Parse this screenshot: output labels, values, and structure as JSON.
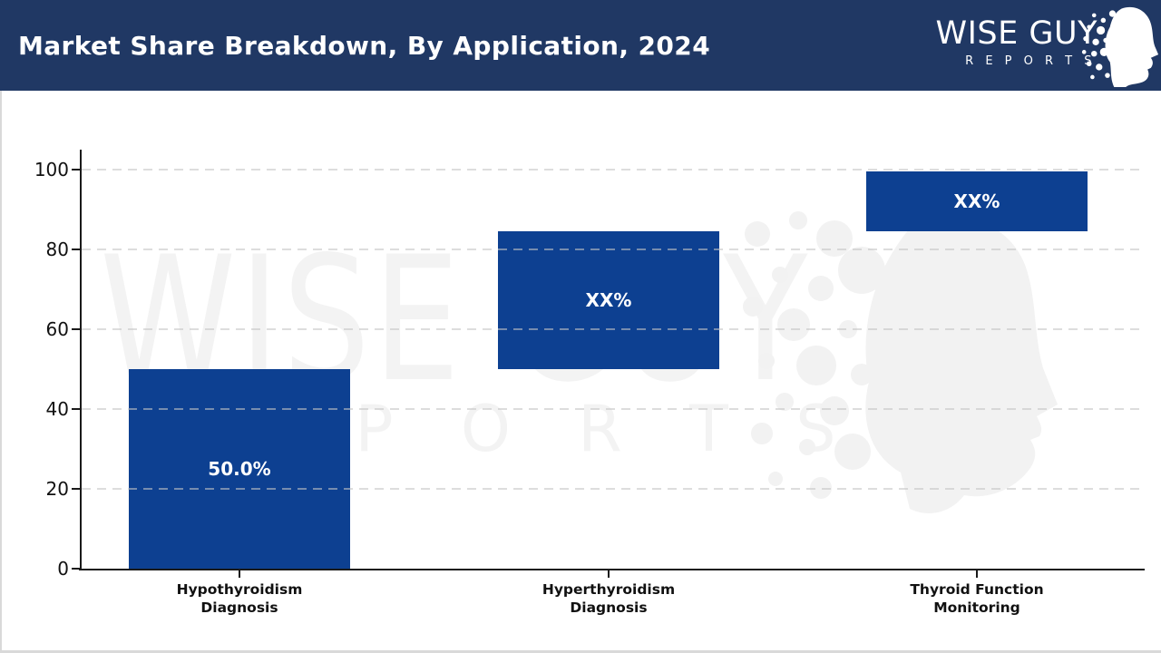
{
  "header": {
    "title": "Market Share Breakdown, By Application, 2024",
    "bg_color": "#203864",
    "logo": {
      "line1": "WISE GUY",
      "line2": "R E P O R T S",
      "face_icon": "dotted-head-profile"
    }
  },
  "watermark": {
    "line1": "WISE GUY",
    "line2": "R E P O R T S",
    "face_icon": "dotted-head-profile",
    "color": "#f3f3f3"
  },
  "chart_data": {
    "type": "bar",
    "subtype": "waterfall",
    "title": "Market Share Breakdown, By Application, 2024",
    "xlabel": "",
    "ylabel": "",
    "ylim": [
      0,
      105
    ],
    "yticks": [
      0,
      20,
      40,
      60,
      80,
      100
    ],
    "grid": true,
    "grid_style": "dashed",
    "legend": "none",
    "bar_color": "#0d4091",
    "bar_label_color": "#ffffff",
    "categories": [
      "Hypothyroidism Diagnosis",
      "Hyperthyroidism Diagnosis",
      "Thyroid Function Monitoring"
    ],
    "category_lines": [
      [
        "Hypothyroidism",
        "Diagnosis"
      ],
      [
        "Hyperthyroidism",
        "Diagnosis"
      ],
      [
        "Thyroid Function",
        "Monitoring"
      ]
    ],
    "bars": [
      {
        "category": "Hypothyroidism Diagnosis",
        "base": 0,
        "top": 50,
        "label": "50.0%"
      },
      {
        "category": "Hyperthyroidism Diagnosis",
        "base": 50,
        "top": 84.6,
        "label": "XX%"
      },
      {
        "category": "Thyroid Function Monitoring",
        "base": 84.6,
        "top": 99.6,
        "label": "XX%"
      }
    ]
  },
  "footer": {
    "strip_color": "#d9d9d9"
  }
}
